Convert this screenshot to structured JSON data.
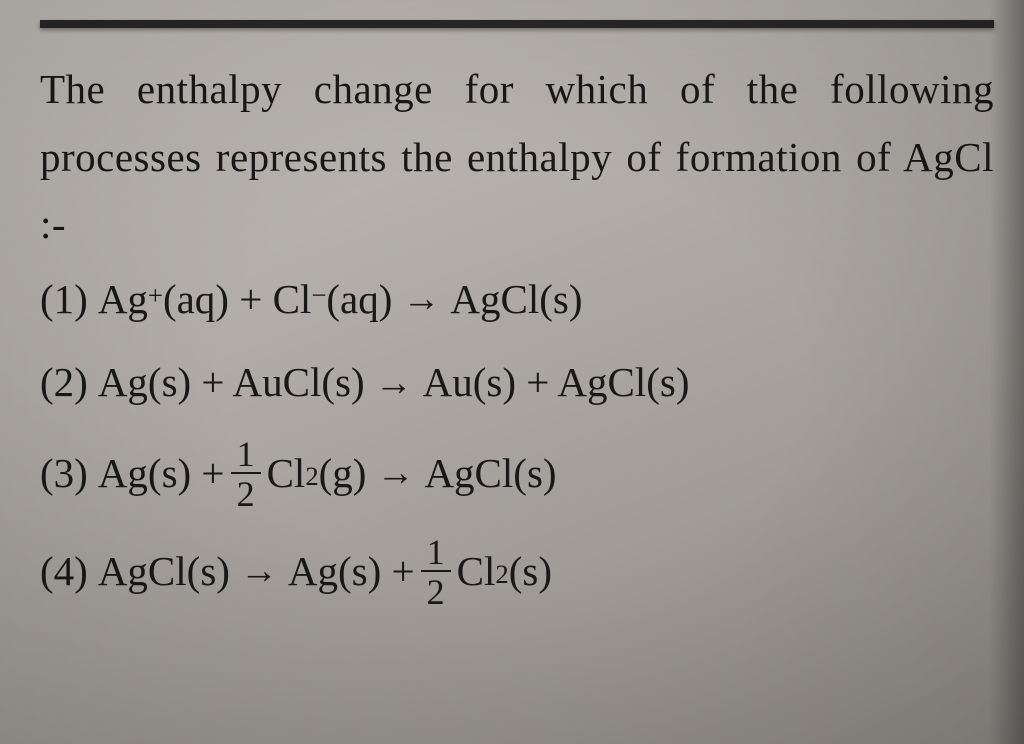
{
  "page": {
    "background_gradient": [
      "#c5c0bb",
      "#b0aba6",
      "#a09b96",
      "#8f8a85"
    ],
    "text_color": "#1a1816",
    "border_color": "#2a2826",
    "font_family": "Times New Roman",
    "question_fontsize": 41,
    "option_fontsize": 41,
    "fraction_fontsize": 36
  },
  "question": {
    "line1": "The enthalpy change for which of the following",
    "line2": "processes represents the enthalpy of formation",
    "line3": "of AgCl :-"
  },
  "options": [
    {
      "num": "(1)",
      "lhs_parts": [
        "Ag",
        "+",
        " (aq) + Cl",
        "−",
        " (aq)"
      ],
      "rhs_parts": [
        "AgCl(s)"
      ]
    },
    {
      "num": "(2)",
      "lhs_parts": [
        "Ag(s) + AuCl(s)"
      ],
      "rhs_parts": [
        "Au(s) + AgCl(s)"
      ]
    },
    {
      "num": "(3)",
      "lhs_prefix": "Ag(s) + ",
      "frac_num": "1",
      "frac_den": "2",
      "lhs_suffix_parts": [
        " Cl",
        "2",
        "(g)"
      ],
      "rhs_parts": [
        "AgCl(s)"
      ]
    },
    {
      "num": "(4)",
      "lhs_parts": [
        "AgCl(s)"
      ],
      "rhs_prefix": "Ag(s) + ",
      "frac_num": "1",
      "frac_den": "2",
      "rhs_suffix_parts": [
        " Cl",
        "2",
        "(s)"
      ]
    }
  ],
  "symbols": {
    "arrow": "→"
  }
}
